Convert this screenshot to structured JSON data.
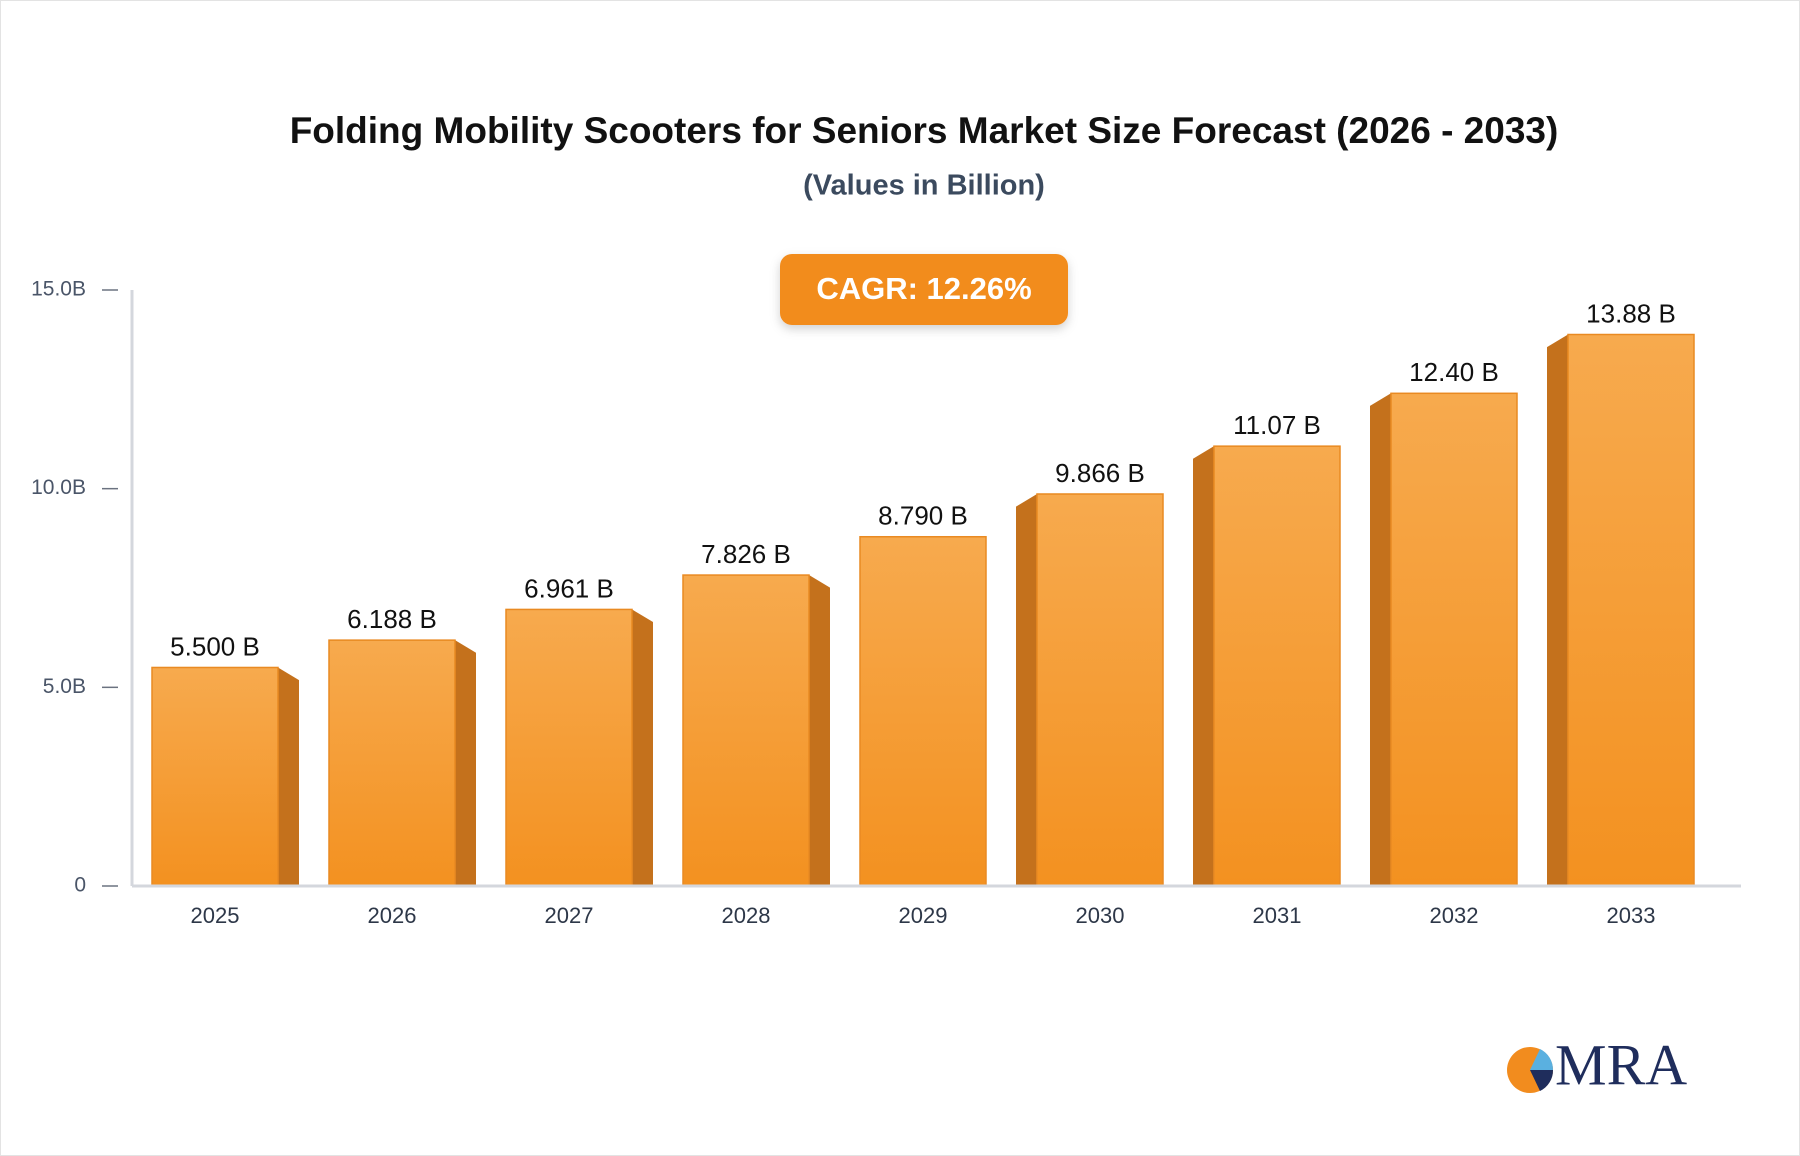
{
  "chart_data": {
    "type": "bar",
    "title": "Folding Mobility Scooters for Seniors Market Size Forecast (2026 - 2033)",
    "subtitle": "(Values in Billion)",
    "annotation": "CAGR: 12.26%",
    "categories": [
      "2025",
      "2026",
      "2027",
      "2028",
      "2029",
      "2030",
      "2031",
      "2032",
      "2033"
    ],
    "values": [
      5.5,
      6.188,
      6.961,
      7.826,
      8.79,
      9.866,
      11.07,
      12.4,
      13.88
    ],
    "value_labels": [
      "5.500 B",
      "6.188 B",
      "6.961 B",
      "7.826 B",
      "8.790 B",
      "9.866 B",
      "11.07 B",
      "12.40 B",
      "13.88 B"
    ],
    "color": "#f5a03a",
    "ylim": [
      0,
      15
    ],
    "yticks": [
      0,
      {
        "value": 5,
        "label": "5.0B"
      },
      {
        "value": 10,
        "label": "10.0B"
      },
      {
        "value": 15,
        "label": "15.0B"
      }
    ],
    "grid": false
  },
  "logo": "MRA"
}
